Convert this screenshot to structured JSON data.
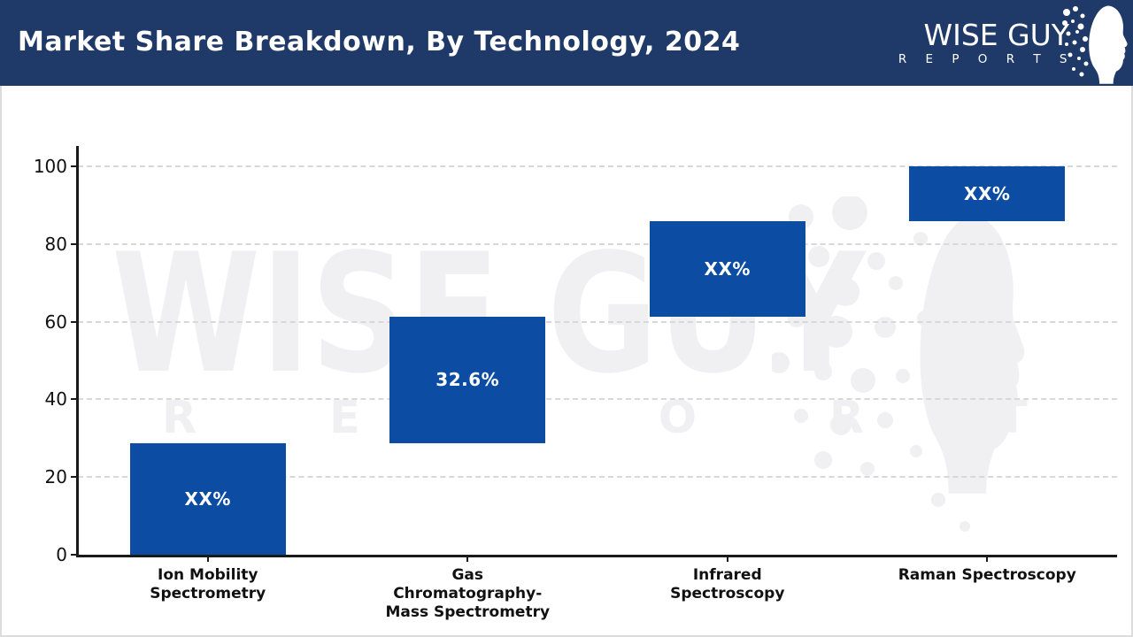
{
  "header": {
    "title": "Market Share Breakdown, By Technology, 2024",
    "logo": {
      "name": "WISE GUY",
      "tagline": "R E P O R T S"
    }
  },
  "watermark": {
    "line1": "WISE GUY",
    "line2": "R E P O R T S"
  },
  "chart_data": {
    "type": "bar",
    "variant": "waterfall",
    "title": "Market Share Breakdown, By Technology, 2024",
    "categories": [
      {
        "name": "Ion Mobility Spectrometry",
        "lines": [
          "Ion Mobility",
          "Spectrometry"
        ]
      },
      {
        "name": "Gas Chromatography-Mass Spectrometry",
        "lines": [
          "Gas",
          "Chromatography-",
          "Mass Spectrometry"
        ]
      },
      {
        "name": "Infrared Spectroscopy",
        "lines": [
          "Infrared",
          "Spectroscopy"
        ]
      },
      {
        "name": "Raman Spectroscopy",
        "lines": [
          "Raman Spectroscopy"
        ]
      }
    ],
    "values": [
      {
        "label": "XX%",
        "start": 0,
        "end": 28.7,
        "height": 28.7
      },
      {
        "label": "32.6%",
        "start": 28.7,
        "end": 61.3,
        "height": 32.6
      },
      {
        "label": "XX%",
        "start": 61.3,
        "end": 85.8,
        "height": 24.5
      },
      {
        "label": "XX%",
        "start": 85.8,
        "end": 100,
        "height": 14.2
      }
    ],
    "ylim": [
      0,
      100
    ],
    "yticks": [
      0,
      20,
      40,
      60,
      80,
      100
    ],
    "xlabel": "",
    "ylabel": "",
    "grid": {
      "horizontal": true,
      "style": "dashed"
    },
    "legend": null
  },
  "colors": {
    "header_bg": "#1f3a68",
    "bar": "#0c4ca3",
    "bar_label": "#ffffff",
    "grid": "#d8d8d8",
    "axis": "#1a1a1a",
    "watermark": "#f0f0f2",
    "frame": "#dcdcdc"
  }
}
